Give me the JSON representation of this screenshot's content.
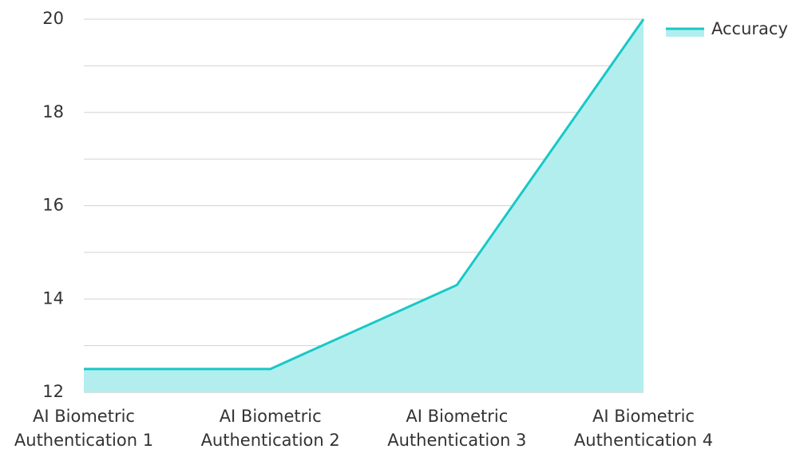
{
  "chart_data": {
    "type": "area",
    "categories": [
      [
        "AI Biometric",
        "Authentication 1"
      ],
      [
        "AI Biometric",
        "Authentication 2"
      ],
      [
        "AI Biometric",
        "Authentication 3"
      ],
      [
        "AI Biometric",
        "Authentication 4"
      ]
    ],
    "series": [
      {
        "name": "Accuracy",
        "values": [
          12.5,
          12.5,
          14.3,
          20
        ]
      }
    ],
    "ylim": [
      12,
      20
    ],
    "y_ticks": [
      12,
      14,
      16,
      18,
      20
    ],
    "y_minor_step": 1,
    "grid": true,
    "legend": {
      "position": "top-right"
    },
    "colors": {
      "line": "#19C8C6",
      "fill": "#B2EEEE",
      "grid": "#D3D3D3",
      "baseline": "#BDBDBD"
    }
  }
}
